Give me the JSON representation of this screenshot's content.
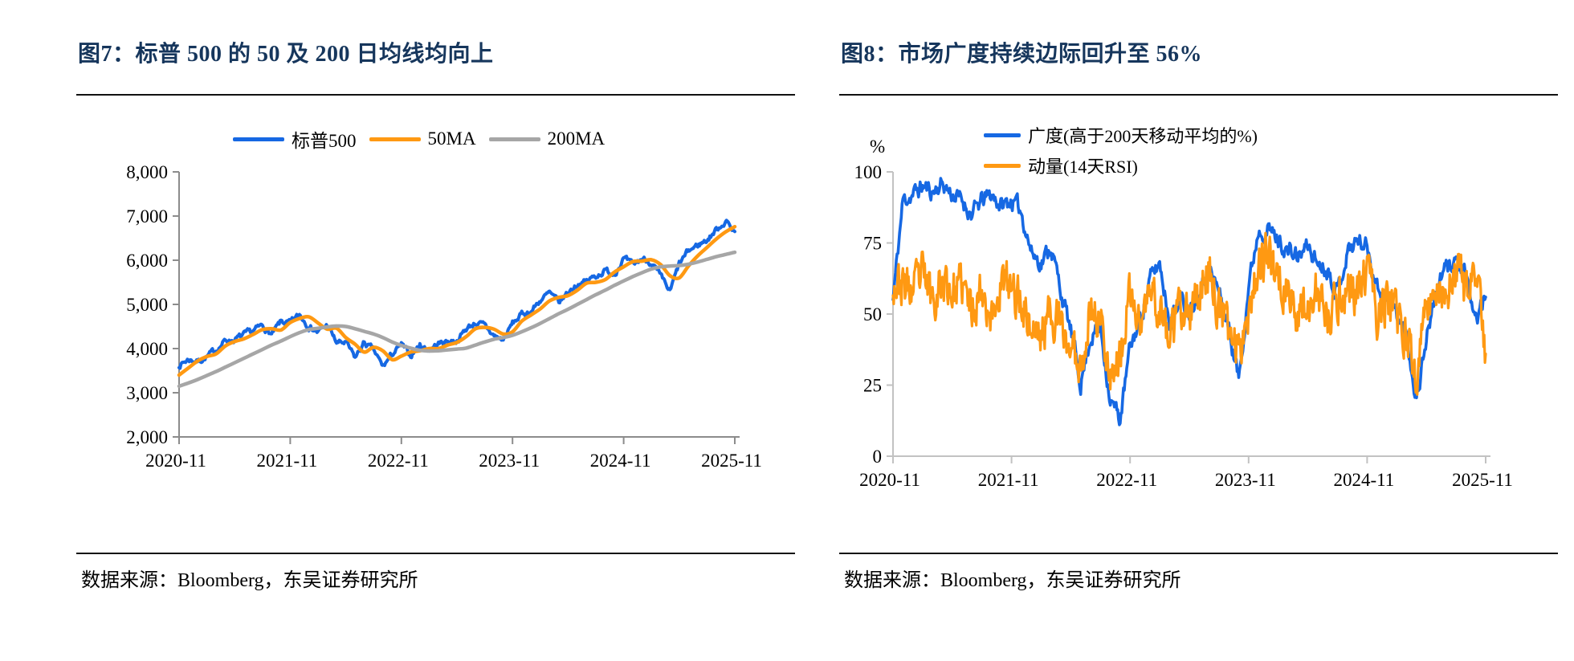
{
  "figures": [
    {
      "id": "fig7",
      "title": "图7：标普 500 的 50 及 200 日均线均向上",
      "source_label": "数据来源：Bloomberg，东吴证券研究所",
      "legend": [
        {
          "label": "标普500",
          "color": "#1668e3"
        },
        {
          "label": "50MA",
          "color": "#ff9912"
        },
        {
          "label": "200MA",
          "color": "#a6a6a6"
        }
      ]
    },
    {
      "id": "fig8",
      "title": "图8：市场广度持续边际回升至 56%",
      "source_label": "数据来源：Bloomberg，东吴证券研究所",
      "legend": [
        {
          "label": "广度(高于200天移动平均的%)",
          "color": "#1668e3"
        },
        {
          "label": "动量(14天RSI)",
          "color": "#ff9912"
        }
      ]
    }
  ],
  "colors": {
    "title_navy": "#16365c",
    "blue_line": "#1668e3",
    "orange_line": "#ff9912",
    "gray_line": "#a6a6a6",
    "axis_left_chart": "#8c8c8c",
    "axis_right_chart": "#c2c2c2"
  },
  "chart_data": [
    {
      "type": "line",
      "title": "标普 500 的 50 及 200 日均线均向上",
      "xlabel": "",
      "ylabel": "",
      "x_start": "2020-11",
      "x_end": "2025-11",
      "x_tick_labels": [
        "2020-11",
        "2021-11",
        "2022-11",
        "2023-11",
        "2024-11",
        "2025-11"
      ],
      "x_tick_months": [
        0,
        12,
        24,
        36,
        48,
        60
      ],
      "ylim": [
        2000,
        8000
      ],
      "y_tick_values": [
        8000,
        7000,
        6000,
        5000,
        4000,
        3000,
        2000
      ],
      "y_tick_labels": [
        "8,000",
        "7,000",
        "6,000",
        "5,000",
        "4,000",
        "3,000",
        "2,000"
      ],
      "grid": false,
      "legend_position": "top",
      "series": [
        {
          "name": "标普500",
          "color": "#1668e3",
          "style": "jagged",
          "width": 4,
          "noise": 70,
          "persist": 0.65,
          "steps": 10,
          "seed": 7,
          "monthly_values": [
            3622,
            3756,
            3714,
            3811,
            3973,
            4181,
            4204,
            4298,
            4395,
            4523,
            4308,
            4605,
            4567,
            4766,
            4516,
            4374,
            4530,
            4132,
            4132,
            3785,
            4130,
            3955,
            3586,
            3872,
            4080,
            3840,
            4077,
            3970,
            4109,
            4169,
            4180,
            4450,
            4589,
            4508,
            4288,
            4194,
            4568,
            4770,
            4846,
            5096,
            5254,
            5036,
            5278,
            5460,
            5522,
            5648,
            5762,
            5705,
            6032,
            5882,
            6041,
            5955,
            5612,
            5280,
            5912,
            6205,
            6340,
            6460,
            6688,
            6890,
            6650
          ]
        },
        {
          "name": "50MA",
          "color": "#ff9912",
          "style": "smooth",
          "width": 4.5,
          "monthly_values": [
            3400,
            3560,
            3720,
            3820,
            3880,
            4060,
            4160,
            4220,
            4320,
            4430,
            4450,
            4420,
            4590,
            4680,
            4720,
            4580,
            4440,
            4460,
            4250,
            4100,
            3920,
            4030,
            3950,
            3750,
            3830,
            3920,
            3950,
            4000,
            4000,
            4080,
            4140,
            4270,
            4450,
            4480,
            4440,
            4330,
            4380,
            4620,
            4760,
            4900,
            5080,
            5160,
            5200,
            5320,
            5480,
            5500,
            5560,
            5730,
            5850,
            5970,
            5980,
            6010,
            5900,
            5650,
            5600,
            5870,
            6100,
            6290,
            6480,
            6640,
            6760
          ]
        },
        {
          "name": "200MA",
          "color": "#a6a6a6",
          "style": "smooth",
          "width": 4.5,
          "monthly_values": [
            3150,
            3220,
            3300,
            3390,
            3480,
            3580,
            3680,
            3780,
            3880,
            3980,
            4080,
            4170,
            4270,
            4360,
            4430,
            4460,
            4490,
            4510,
            4500,
            4450,
            4390,
            4330,
            4250,
            4150,
            4070,
            4010,
            3960,
            3945,
            3950,
            3970,
            3990,
            4010,
            4080,
            4150,
            4210,
            4250,
            4300,
            4380,
            4470,
            4570,
            4680,
            4790,
            4890,
            5000,
            5110,
            5220,
            5320,
            5430,
            5530,
            5630,
            5720,
            5800,
            5850,
            5870,
            5880,
            5910,
            5960,
            6020,
            6080,
            6130,
            6180
          ]
        }
      ]
    },
    {
      "type": "line",
      "title": "市场广度持续边际回升至 56%",
      "xlabel": "",
      "ylabel": "%",
      "y_axis_unit": "%",
      "x_start": "2020-11",
      "x_end": "2025-11",
      "x_tick_labels": [
        "2020-11",
        "2021-11",
        "2022-11",
        "2023-11",
        "2024-11",
        "2025-11"
      ],
      "x_tick_months": [
        0,
        12,
        24,
        36,
        48,
        60
      ],
      "ylim": [
        0,
        100
      ],
      "y_tick_values": [
        100,
        75,
        50,
        25,
        0
      ],
      "y_tick_labels": [
        "100",
        "75",
        "50",
        "25",
        "0"
      ],
      "grid": false,
      "legend_position": "top",
      "final_breadth_value": 56,
      "series": [
        {
          "name": "广度(高于200天移动平均的%)",
          "color": "#1668e3",
          "style": "jagged",
          "width": 3.6,
          "noise": 3.2,
          "persist": 0.6,
          "steps": 12,
          "seed": 11,
          "clamp": [
            1,
            99
          ],
          "monthly_values": [
            55,
            90,
            92,
            95,
            93,
            96,
            92,
            90,
            85,
            90,
            92,
            88,
            90,
            86,
            72,
            68,
            74,
            58,
            44,
            26,
            42,
            45,
            20,
            13,
            38,
            48,
            62,
            68,
            48,
            55,
            52,
            58,
            66,
            58,
            45,
            27,
            60,
            80,
            80,
            76,
            72,
            70,
            74,
            68,
            66,
            58,
            72,
            76,
            74,
            60,
            55,
            50,
            42,
            20,
            42,
            58,
            66,
            70,
            62,
            48,
            56
          ]
        },
        {
          "name": "动量(14天RSI)",
          "color": "#ff9912",
          "style": "jagged",
          "width": 3.2,
          "noise": 8,
          "persist": 0.45,
          "steps": 14,
          "seed": 23,
          "clamp": [
            12,
            88
          ],
          "monthly_values": [
            62,
            60,
            58,
            64,
            56,
            62,
            58,
            60,
            52,
            60,
            48,
            62,
            58,
            55,
            45,
            42,
            52,
            45,
            38,
            32,
            52,
            48,
            30,
            34,
            56,
            46,
            58,
            52,
            42,
            50,
            48,
            58,
            66,
            52,
            44,
            38,
            52,
            68,
            70,
            64,
            56,
            50,
            54,
            58,
            46,
            55,
            60,
            56,
            66,
            50,
            54,
            48,
            42,
            28,
            54,
            60,
            56,
            64,
            58,
            64,
            36
          ]
        }
      ]
    }
  ]
}
